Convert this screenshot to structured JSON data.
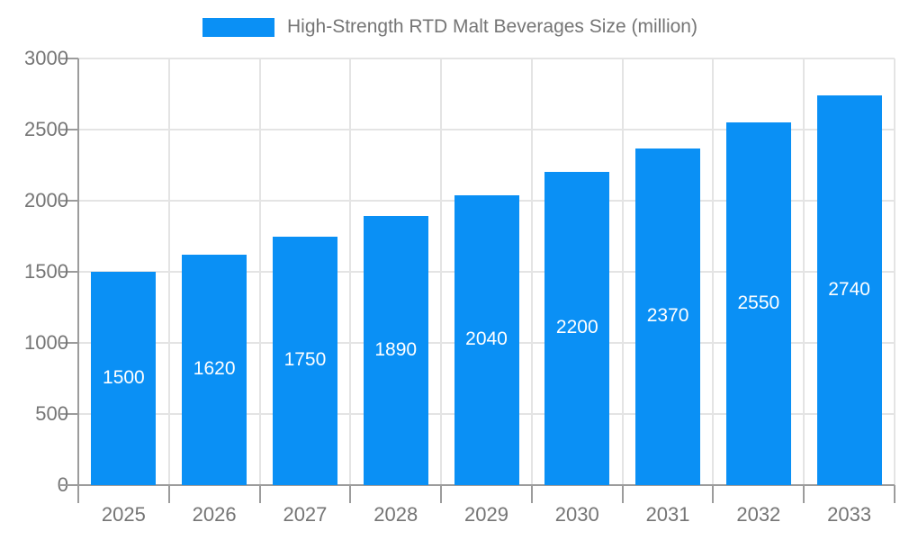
{
  "chart_data": {
    "type": "bar",
    "title": "High-Strength RTD Malt Beverages Size (million)",
    "categories": [
      "2025",
      "2026",
      "2027",
      "2028",
      "2029",
      "2030",
      "2031",
      "2032",
      "2033"
    ],
    "series": [
      {
        "name": "High-Strength RTD Malt Beverages Size (million)",
        "values": [
          1500,
          1620,
          1750,
          1890,
          2040,
          2200,
          2370,
          2550,
          2740
        ]
      }
    ],
    "data_labels": [
      "1500",
      "1620",
      "1750",
      "1890",
      "2040",
      "2200",
      "2370",
      "2550",
      "2740"
    ],
    "ytick_labels": [
      "0",
      "500",
      "1000",
      "1500",
      "2000",
      "2500",
      "3000"
    ],
    "ylim": [
      0,
      3000
    ],
    "ytick_step": 500,
    "grid": true,
    "legend_position": "top",
    "xlabel": "",
    "ylabel": "",
    "colors": {
      "bar": "#0a90f5",
      "bar_value_text": "#ffffff",
      "axis_text": "#757575",
      "legend_text": "#757575",
      "gridline": "#e4e4e4",
      "axis_line": "#9c9c9c"
    }
  }
}
